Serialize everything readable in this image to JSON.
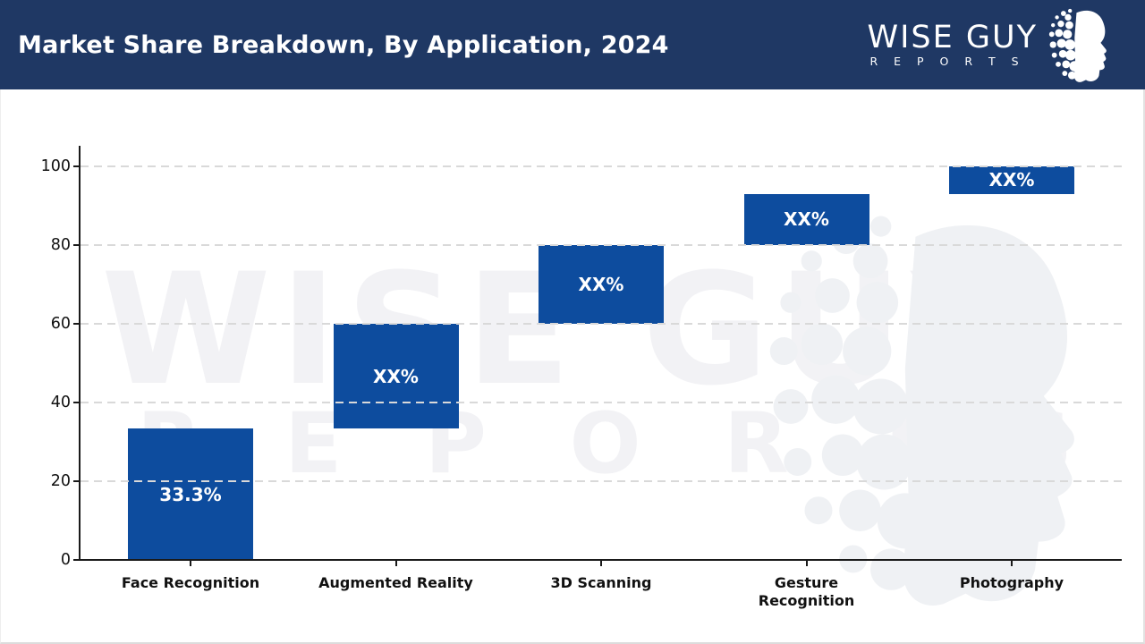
{
  "header": {
    "title": "Market Share Breakdown, By Application, 2024",
    "logo": {
      "wordmark": "WISE GUY",
      "subtext": "R E P O R T S"
    }
  },
  "watermark": {
    "wordmark": "WISE GUY",
    "subtext": "R E P O R T S"
  },
  "colors": {
    "header_bg": "#1f3864",
    "chart_bg": "#ffffff",
    "bar": "#0d4c9e",
    "bar_label": "#ffffff",
    "grid": "#d9d9d9",
    "axis": "#1a1a1a",
    "watermark": "#f2f2f5"
  },
  "chart_data": {
    "type": "bar",
    "subtype": "waterfall",
    "title": "Market Share Breakdown, By Application, 2024",
    "categories": [
      "Face Recognition",
      "Augmented Reality",
      "3D Scanning",
      "Gesture Recognition",
      "Photography"
    ],
    "x_tick_labels": [
      [
        "Face Recognition"
      ],
      [
        "Augmented Reality"
      ],
      [
        "3D Scanning"
      ],
      [
        "Gesture",
        "Recognition"
      ],
      [
        "Photography"
      ]
    ],
    "segments": [
      {
        "category": "Face Recognition",
        "from": 0,
        "to": 33.3,
        "label": "33.3%"
      },
      {
        "category": "Augmented Reality",
        "from": 33.3,
        "to": 60,
        "label": "XX%"
      },
      {
        "category": "3D Scanning",
        "from": 60,
        "to": 80,
        "label": "XX%"
      },
      {
        "category": "Gesture Recognition",
        "from": 80,
        "to": 93,
        "label": "XX%"
      },
      {
        "category": "Photography",
        "from": 93,
        "to": 100,
        "label": "XX%"
      }
    ],
    "ylabel": "",
    "xlabel": "",
    "yticks": [
      0,
      20,
      40,
      60,
      80,
      100
    ],
    "ylim": [
      0,
      105
    ],
    "grid": {
      "axis": "y",
      "style": "dashed",
      "color": "#d9d9d9"
    },
    "legend": null
  }
}
